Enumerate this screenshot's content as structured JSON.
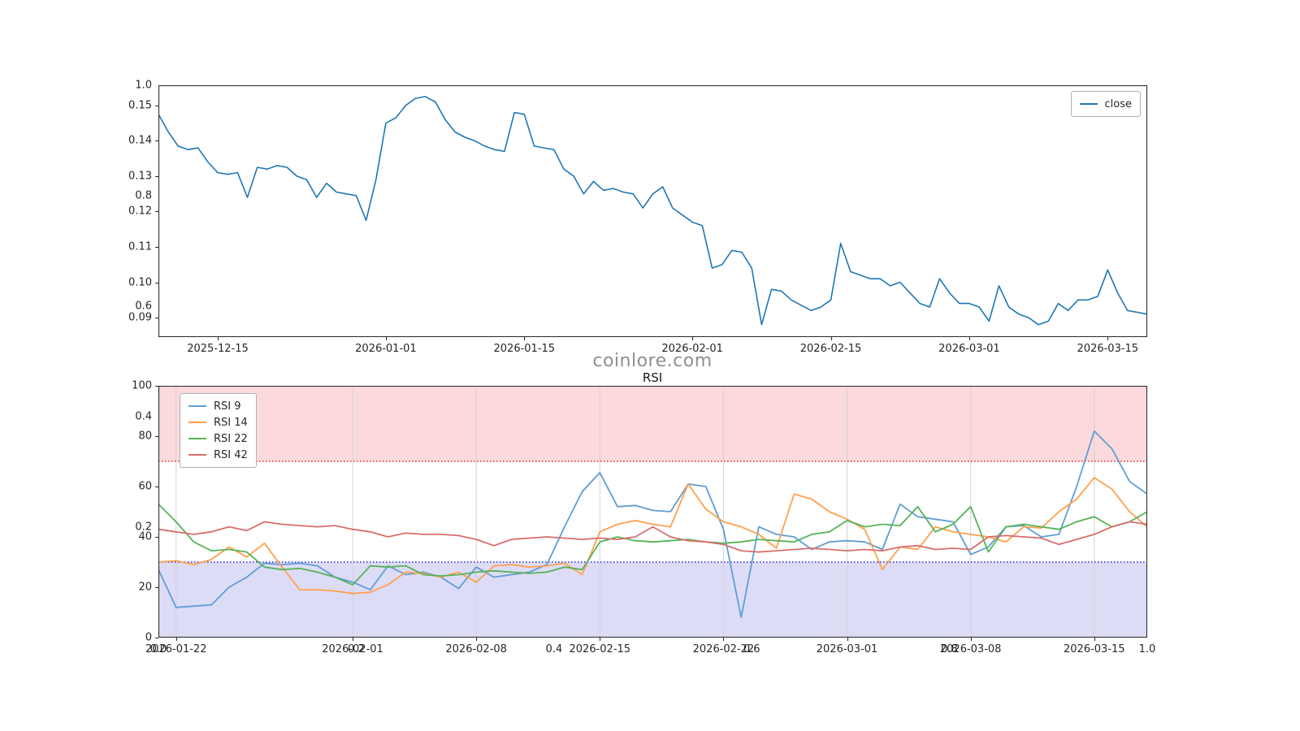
{
  "watermark": "coinlore.com",
  "colors": {
    "close": "#1f77b4",
    "rsi9": "#5f9dd4",
    "rsi14": "#ffa04e",
    "rsi22": "#56b356",
    "rsi42": "#d96d6d",
    "overbought_fill": "#fbd9dc",
    "oversold_fill": "#dddcf6",
    "overbought_line": "#d40000",
    "oversold_line": "#0000c0",
    "grid": "#d3d3d3",
    "spine": "#2b2b2b"
  },
  "outer_axis": {
    "ytick_labels": [
      "1.0",
      "0.8",
      "0.6",
      "0.4",
      "0.2"
    ],
    "ytick_values": [
      1.0,
      0.8,
      0.6,
      0.4,
      0.2
    ],
    "xtick_labels": [
      "0.0",
      "0.2",
      "0.4",
      "0.6",
      "0.8",
      "1.0"
    ],
    "xtick_values": [
      0.0,
      0.2,
      0.4,
      0.6,
      0.8,
      1.0
    ]
  },
  "chart_data": [
    {
      "type": "line",
      "name": "price",
      "title": "",
      "legend_position": "upper right",
      "x_start_date": "2025-12-09",
      "x_step": "1 day",
      "xtick_labels": [
        "2025-12-15",
        "2026-01-01",
        "2026-01-15",
        "2026-02-01",
        "2026-02-15",
        "2026-03-01",
        "2026-03-15"
      ],
      "xtick_indices": [
        6,
        23,
        37,
        54,
        68,
        82,
        96
      ],
      "ytick_labels": [
        "0.09",
        "0.10",
        "0.11",
        "0.12",
        "0.13",
        "0.14",
        "0.15"
      ],
      "ytick_values": [
        0.09,
        0.1,
        0.11,
        0.12,
        0.13,
        0.14,
        0.15
      ],
      "ylim": [
        0.0845,
        0.1557
      ],
      "grid": "none",
      "series": [
        {
          "name": "close",
          "color_key": "close",
          "values": [
            0.1475,
            0.1425,
            0.1385,
            0.1375,
            0.138,
            0.134,
            0.131,
            0.1305,
            0.131,
            0.124,
            0.1325,
            0.132,
            0.133,
            0.1325,
            0.13,
            0.129,
            0.124,
            0.128,
            0.1255,
            0.125,
            0.1245,
            0.1175,
            0.129,
            0.145,
            0.1465,
            0.15,
            0.152,
            0.1525,
            0.151,
            0.146,
            0.1425,
            0.141,
            0.14,
            0.1385,
            0.1375,
            0.137,
            0.148,
            0.1475,
            0.1385,
            0.138,
            0.1375,
            0.132,
            0.13,
            0.125,
            0.1285,
            0.126,
            0.1265,
            0.1255,
            0.125,
            0.121,
            0.125,
            0.127,
            0.121,
            0.119,
            0.117,
            0.116,
            0.104,
            0.105,
            0.109,
            0.1085,
            0.104,
            0.088,
            0.098,
            0.0975,
            0.095,
            0.0935,
            0.092,
            0.093,
            0.095,
            0.111,
            0.103,
            0.102,
            0.101,
            0.101,
            0.099,
            0.1,
            0.097,
            0.094,
            0.093,
            0.101,
            0.097,
            0.094,
            0.094,
            0.093,
            0.089,
            0.099,
            0.093,
            0.091,
            0.09,
            0.088,
            0.089,
            0.094,
            0.092,
            0.095,
            0.095,
            0.096,
            0.1035,
            0.097,
            0.092,
            0.0915,
            0.091
          ]
        }
      ]
    },
    {
      "type": "line",
      "name": "rsi",
      "title": "RSI",
      "legend_position": "upper left",
      "x_start_date": "2026-01-21",
      "x_step": "1 day",
      "xtick_labels": [
        "2026-01-22",
        "2026-02-01",
        "2026-02-08",
        "2026-02-15",
        "2026-02-22",
        "2026-03-01",
        "2026-03-08",
        "2026-03-15"
      ],
      "xtick_indices": [
        1,
        11,
        18,
        25,
        32,
        39,
        46,
        53
      ],
      "ytick_labels": [
        "0",
        "20",
        "40",
        "60",
        "80",
        "100"
      ],
      "ytick_values": [
        0,
        20,
        40,
        60,
        80,
        100
      ],
      "ylim": [
        0,
        100
      ],
      "grid": "vertical",
      "bands": [
        {
          "from": 70,
          "to": 100,
          "color_key": "overbought_fill"
        },
        {
          "from": 0,
          "to": 30,
          "color_key": "oversold_fill"
        }
      ],
      "hlines": [
        {
          "y": 70,
          "style": "dotted",
          "color_key": "overbought_line"
        },
        {
          "y": 30,
          "style": "dotted",
          "color_key": "oversold_line"
        }
      ],
      "series": [
        {
          "name": "RSI 9",
          "color_key": "rsi9",
          "values": [
            27,
            12,
            12.5,
            13,
            20,
            24,
            29.5,
            29,
            29.5,
            28.5,
            24,
            22,
            19,
            28.5,
            25,
            26,
            24,
            19.5,
            28,
            24,
            25,
            26,
            29,
            44,
            58,
            65.5,
            52,
            52.5,
            50.5,
            50,
            61,
            60,
            43,
            8,
            44,
            41,
            40,
            35,
            38,
            38.5,
            38,
            35,
            53,
            48,
            47,
            46,
            33,
            36,
            44,
            44.5,
            40,
            41,
            60,
            82,
            75,
            62,
            57
          ]
        },
        {
          "name": "RSI 14",
          "color_key": "rsi14",
          "values": [
            30,
            30.5,
            29,
            31,
            36,
            32,
            37.5,
            28,
            19,
            19,
            18.5,
            17.5,
            18,
            21,
            26,
            25.5,
            24,
            26,
            22,
            28.5,
            29,
            28,
            28.5,
            29.5,
            25,
            42,
            45,
            46.5,
            45,
            44,
            61,
            51,
            46,
            44,
            41,
            35.5,
            57,
            55,
            50,
            47,
            43,
            27,
            36,
            35,
            44,
            42,
            41,
            40,
            38,
            44,
            43.5,
            50,
            55,
            63.5,
            59,
            50,
            44
          ]
        },
        {
          "name": "RSI 22",
          "color_key": "rsi22",
          "values": [
            53,
            46,
            38,
            34.5,
            35,
            34,
            28,
            27,
            27.5,
            26,
            24,
            21,
            28.5,
            28,
            28.5,
            25,
            24.5,
            25,
            26,
            26.5,
            26,
            25.5,
            26,
            28,
            27,
            38,
            40,
            38.5,
            38,
            38.5,
            39,
            38,
            37.5,
            38,
            39,
            38.5,
            38,
            41,
            42,
            46.5,
            44,
            45,
            44.5,
            52,
            42,
            45,
            52,
            34,
            44,
            45,
            44,
            43,
            46,
            48,
            44,
            46,
            50
          ]
        },
        {
          "name": "RSI 42",
          "color_key": "rsi42",
          "values": [
            43,
            42,
            41,
            42,
            44,
            42.5,
            46,
            45,
            44.5,
            44,
            44.5,
            43,
            42,
            40,
            41.5,
            41,
            41,
            40.5,
            39,
            36.5,
            39,
            39.5,
            40,
            39.5,
            39,
            39.5,
            39,
            40,
            44,
            40,
            38.5,
            38,
            37,
            34.5,
            34,
            34.5,
            35,
            35.5,
            35,
            34.5,
            35,
            34.5,
            36,
            36.5,
            35,
            35.5,
            35,
            40,
            40.5,
            40,
            39.5,
            37,
            39,
            41,
            44,
            46,
            45
          ]
        }
      ]
    }
  ]
}
